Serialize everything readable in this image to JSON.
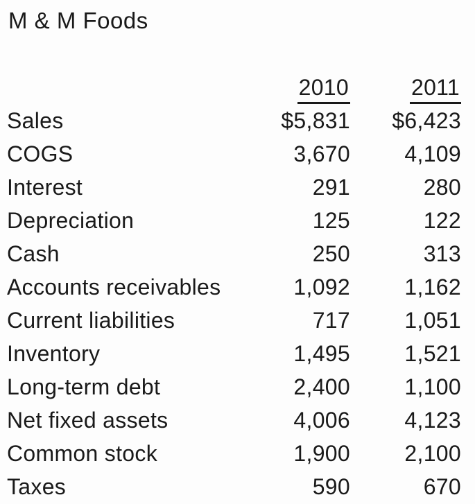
{
  "page": {
    "title": "M & M Foods"
  },
  "table": {
    "columns": [
      "2010",
      "2011"
    ],
    "rows": [
      {
        "label": "Sales",
        "v2010": "$5,831",
        "v2011": "$6,423"
      },
      {
        "label": "COGS",
        "v2010": "3,670",
        "v2011": "4,109"
      },
      {
        "label": "Interest",
        "v2010": "291",
        "v2011": "280"
      },
      {
        "label": "Depreciation",
        "v2010": "125",
        "v2011": "122"
      },
      {
        "label": "Cash",
        "v2010": "250",
        "v2011": "313"
      },
      {
        "label": "Accounts receivables",
        "v2010": "1,092",
        "v2011": "1,162"
      },
      {
        "label": "Current liabilities",
        "v2010": "717",
        "v2011": "1,051"
      },
      {
        "label": "Inventory",
        "v2010": "1,495",
        "v2011": "1,521"
      },
      {
        "label": "Long-term debt",
        "v2010": "2,400",
        "v2011": "1,100"
      },
      {
        "label": "Net fixed assets",
        "v2010": "4,006",
        "v2011": "4,123"
      },
      {
        "label": "Common stock",
        "v2010": "1,900",
        "v2011": "2,100"
      },
      {
        "label": "Taxes",
        "v2010": "590",
        "v2011": "670"
      }
    ]
  },
  "colors": {
    "background": "#fdfdfd",
    "text": "#1a1a1a"
  }
}
